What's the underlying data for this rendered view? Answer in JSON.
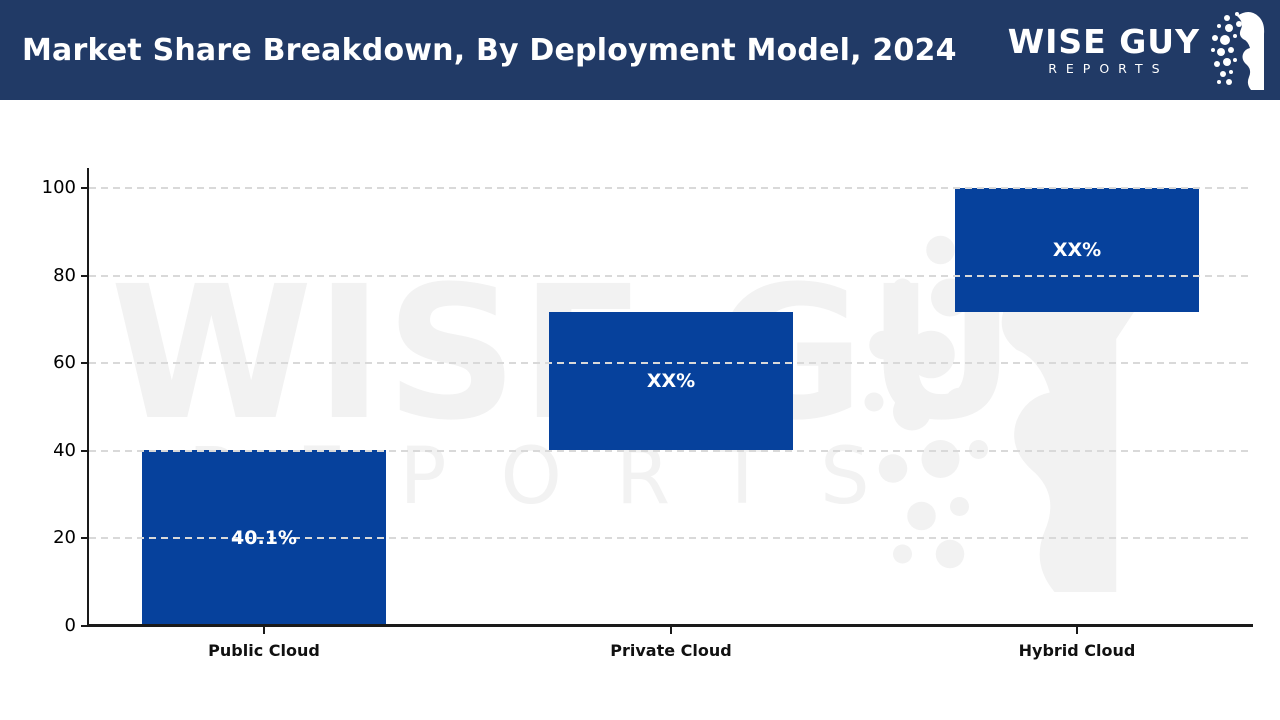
{
  "header": {
    "title": "Market Share Breakdown, By Deployment Model, 2024",
    "logo": {
      "line1": "WISE GUY",
      "line2": "REPORTS"
    }
  },
  "watermark": {
    "line1": "WISE GUY",
    "line2": "REPORTS"
  },
  "colors": {
    "header_bg": "#213A66",
    "footer_bg": "#213A66",
    "bar": "#06419C",
    "bar_label": "#FFFFFF",
    "gridline": "#D9D9D9",
    "axis": "#1A1A1A",
    "tick_text": "#000000",
    "category_text": "#111111",
    "watermark": "#F2F2F2"
  },
  "chart_data": {
    "type": "bar",
    "variant": "waterfall-breakdown",
    "title": "Market Share Breakdown, By Deployment Model, 2024",
    "categories": [
      "Public Cloud",
      "Private Cloud",
      "Hybrid Cloud"
    ],
    "segments": [
      {
        "category": "Public Cloud",
        "start": 0,
        "end": 40.1,
        "label": "40.1%"
      },
      {
        "category": "Private Cloud",
        "start": 40.1,
        "end": 71.8,
        "label": "XX%"
      },
      {
        "category": "Hybrid Cloud",
        "start": 71.8,
        "end": 100,
        "label": "XX%"
      }
    ],
    "y_ticks": [
      0,
      20,
      40,
      60,
      80,
      100
    ],
    "ylim": [
      0,
      105
    ],
    "xlabel": "",
    "ylabel": "",
    "grid": {
      "horizontal": true,
      "style": "dashed",
      "over_bars": true
    },
    "legend": null
  }
}
